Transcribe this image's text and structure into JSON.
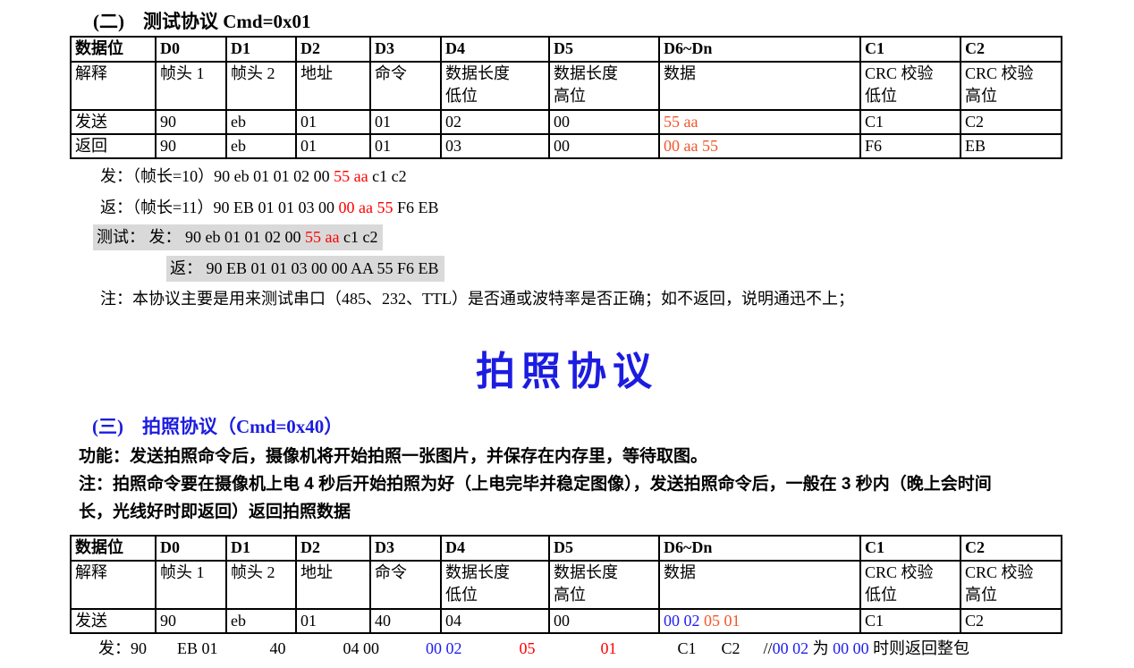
{
  "colors": {
    "red": "#ff0000",
    "orange": "#f4552a",
    "blue": "#1d1df0",
    "heading-blue": "#1c1ce0",
    "highlight": "#d9d9d9"
  },
  "test_section": {
    "heading": "(二)　测试协议  Cmd=0x01",
    "table": {
      "header": [
        "数据位",
        "D0",
        "D1",
        "D2",
        "D3",
        "D4",
        "D5",
        "D6~Dn",
        "C1",
        "C2"
      ],
      "rows": [
        [
          "解释",
          "帧头 1",
          "帧头 2",
          "地址",
          "命令",
          "数据长度\n低位",
          "数据长度\n高位",
          "数据",
          "CRC 校验\n低位",
          "CRC 校验\n高位"
        ],
        [
          "发送",
          "90",
          "eb",
          "01",
          "01",
          "02",
          "00",
          [
            {
              "text": "55 aa",
              "color": "orange"
            }
          ],
          "C1",
          "C2"
        ],
        [
          "返回",
          "90",
          "eb",
          "01",
          "01",
          "03",
          "00",
          [
            {
              "text": "00 aa 55",
              "color": "orange"
            }
          ],
          "F6",
          "EB"
        ]
      ]
    },
    "send_line": [
      {
        "text": "发：（帧长=10）90 eb 01 01 02 00 "
      },
      {
        "text": "55 aa",
        "color": "red"
      },
      {
        "text": " c1 c2"
      }
    ],
    "recv_line": [
      {
        "text": "返：（帧长=11）90 EB 01 01 03 00 "
      },
      {
        "text": "00 aa 55",
        "color": "red"
      },
      {
        "text": " F6 EB"
      }
    ],
    "test_send_line": [
      {
        "text": "测试： 发： 90 eb 01 01 02 00 "
      },
      {
        "text": "55 aa",
        "color": "red"
      },
      {
        "text": " c1 c2"
      }
    ],
    "test_recv_line": [
      {
        "text": "返： 90 EB 01 01 03 00 00 AA 55 F6 EB"
      }
    ],
    "note_line": "注：本协议主要是用来测试串口（485、232、TTL）是否通或波特率是否正确；如不返回，说明通迅不上；"
  },
  "photo_section": {
    "title": "拍照协议",
    "heading": "(三)　拍照协议（Cmd=0x40）",
    "func_line": "功能：发送拍照命令后，摄像机将开始拍照一张图片，并保存在内存里，等待取图。",
    "note_line1": "注：拍照命令要在摄像机上电 4 秒后开始拍照为好（上电完毕并稳定图像），发送拍照命令后，一般在 3 秒内（晚上会时间",
    "note_line2": "长，光线好时即返回）返回拍照数据",
    "table": {
      "header": [
        "数据位",
        "D0",
        "D1",
        "D2",
        "D3",
        "D4",
        "D5",
        "D6~Dn",
        "C1",
        "C2"
      ],
      "rows": [
        [
          "解释",
          "帧头 1",
          "帧头 2",
          "地址",
          "命令",
          "数据长度\n低位",
          "数据长度\n高位",
          "数据",
          "CRC 校验\n低位",
          "CRC 校验\n高位"
        ],
        [
          "发送",
          "90",
          "eb",
          "01",
          "40",
          "04",
          "00",
          [
            {
              "text": "00 02 ",
              "color": "blue"
            },
            {
              "text": "05 01",
              "color": "orange"
            }
          ],
          "C1",
          "C2"
        ]
      ]
    },
    "bottom_line": [
      {
        "text": "发：90"
      },
      {
        "text": ""
      },
      {
        "text": "EB 01"
      },
      {
        "text": "40"
      },
      {
        "text": "04 00"
      },
      {
        "text": "00 02",
        "color": "blue"
      },
      {
        "text": "05",
        "color": "red"
      },
      {
        "text": "01",
        "color": "red"
      },
      {
        "text": "C1"
      },
      {
        "text": "C2"
      },
      {
        "text": "//"
      },
      {
        "text": "00 02",
        "color": "blue"
      },
      {
        "text": " 为 "
      },
      {
        "text": "00 00",
        "color": "blue"
      },
      {
        "text": " 时则返回整包"
      }
    ]
  }
}
